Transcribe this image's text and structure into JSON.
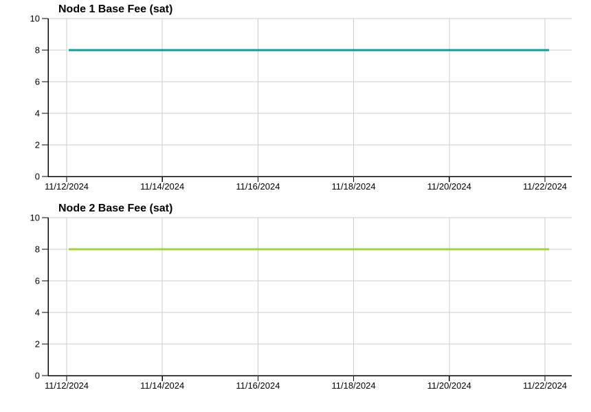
{
  "page": {
    "background": "#ffffff"
  },
  "style": {
    "axis_color": "#000000",
    "grid_color": "#cccccc",
    "text_color": "#000000",
    "node1_line_color": "#12989e",
    "node2_line_color": "#a2d434"
  },
  "chart_data": [
    {
      "type": "line",
      "title": "Node 1 Base Fee (sat)",
      "xlabel": "",
      "ylabel": "",
      "ylim": [
        0,
        10
      ],
      "y_ticks": [
        0,
        2,
        4,
        6,
        8,
        10
      ],
      "x_ticks": [
        "11/12/2024",
        "11/14/2024",
        "11/16/2024",
        "11/18/2024",
        "11/20/2024",
        "11/22/2024"
      ],
      "grid": true,
      "legend_position": "none",
      "series": [
        {
          "name": "Node 1 Base Fee",
          "color": "#12989e",
          "x": [
            "11/12/2024",
            "11/22/2024"
          ],
          "y": [
            8,
            8
          ]
        }
      ]
    },
    {
      "type": "line",
      "title": "Node 2 Base Fee (sat)",
      "xlabel": "",
      "ylabel": "",
      "ylim": [
        0,
        10
      ],
      "y_ticks": [
        0,
        2,
        4,
        6,
        8,
        10
      ],
      "x_ticks": [
        "11/12/2024",
        "11/14/2024",
        "11/16/2024",
        "11/18/2024",
        "11/20/2024",
        "11/22/2024"
      ],
      "grid": true,
      "legend_position": "none",
      "series": [
        {
          "name": "Node 2 Base Fee",
          "color": "#a2d434",
          "x": [
            "11/12/2024",
            "11/22/2024"
          ],
          "y": [
            8,
            8
          ]
        }
      ]
    }
  ]
}
